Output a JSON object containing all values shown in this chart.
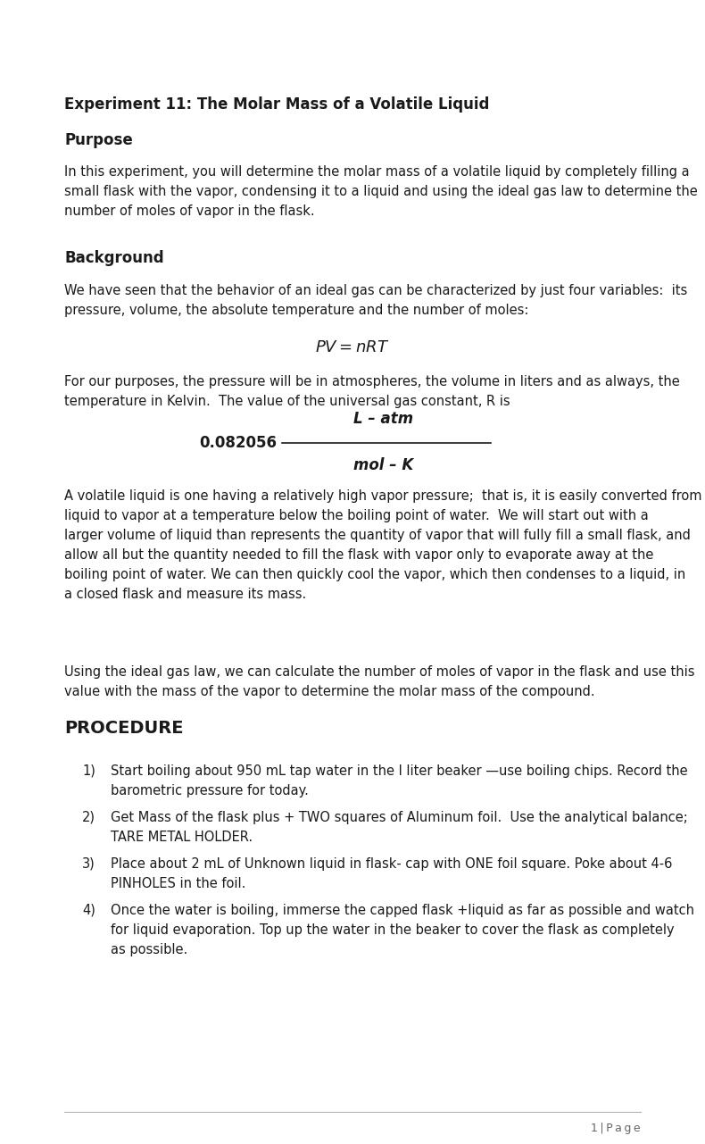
{
  "title": "Experiment 11: The Molar Mass of a Volatile Liquid",
  "section1_heading": "Purpose",
  "section1_body": "In this experiment, you will determine the molar mass of a volatile liquid by completely filling a\nsmall flask with the vapor, condensing it to a liquid and using the ideal gas law to determine the\nnumber of moles of vapor in the flask.",
  "section2_heading": "Background",
  "section2_body1": "We have seen that the behavior of an ideal gas can be characterized by just four variables:  its\npressure, volume, the absolute temperature and the number of moles:",
  "equation2_prefix": "0.082056",
  "equation2_numerator": "L – atm",
  "equation2_denominator": "mol – K",
  "section2_body2": "For our purposes, the pressure will be in atmospheres, the volume in liters and as always, the\ntemperature in Kelvin.  The value of the universal gas constant, R is",
  "section2_body3": "A volatile liquid is one having a relatively high vapor pressure;  that is, it is easily converted from\nliquid to vapor at a temperature below the boiling point of water.  We will start out with a\nlarger volume of liquid than represents the quantity of vapor that will fully fill a small flask, and\nallow all but the quantity needed to fill the flask with vapor only to evaporate away at the\nboiling point of water. We can then quickly cool the vapor, which then condenses to a liquid, in\na closed flask and measure its mass.",
  "section2_body4": "Using the ideal gas law, we can calculate the number of moles of vapor in the flask and use this\nvalue with the mass of the vapor to determine the molar mass of the compound.",
  "section3_heading": "PROCEDURE",
  "procedure_items": [
    "Start boiling about 950 mL tap water in the l liter beaker —use boiling chips. Record the\nbarometric pressure for today.",
    "Get Mass of the flask plus + TWO squares of Aluminum foil.  Use the analytical balance;\nTARE METAL HOLDER.",
    "Place about 2 mL of Unknown liquid in flask- cap with ONE foil square. Poke about 4-6\nPINHOLES in the foil.",
    "Once the water is boiling, immerse the capped flask +liquid as far as possible and watch\nfor liquid evaporation. Top up the water in the beaker to cover the flask as completely\nas possible."
  ],
  "footer_text": "1 | P a g e",
  "bg_color": "#ffffff",
  "text_color": "#1a1a1a"
}
